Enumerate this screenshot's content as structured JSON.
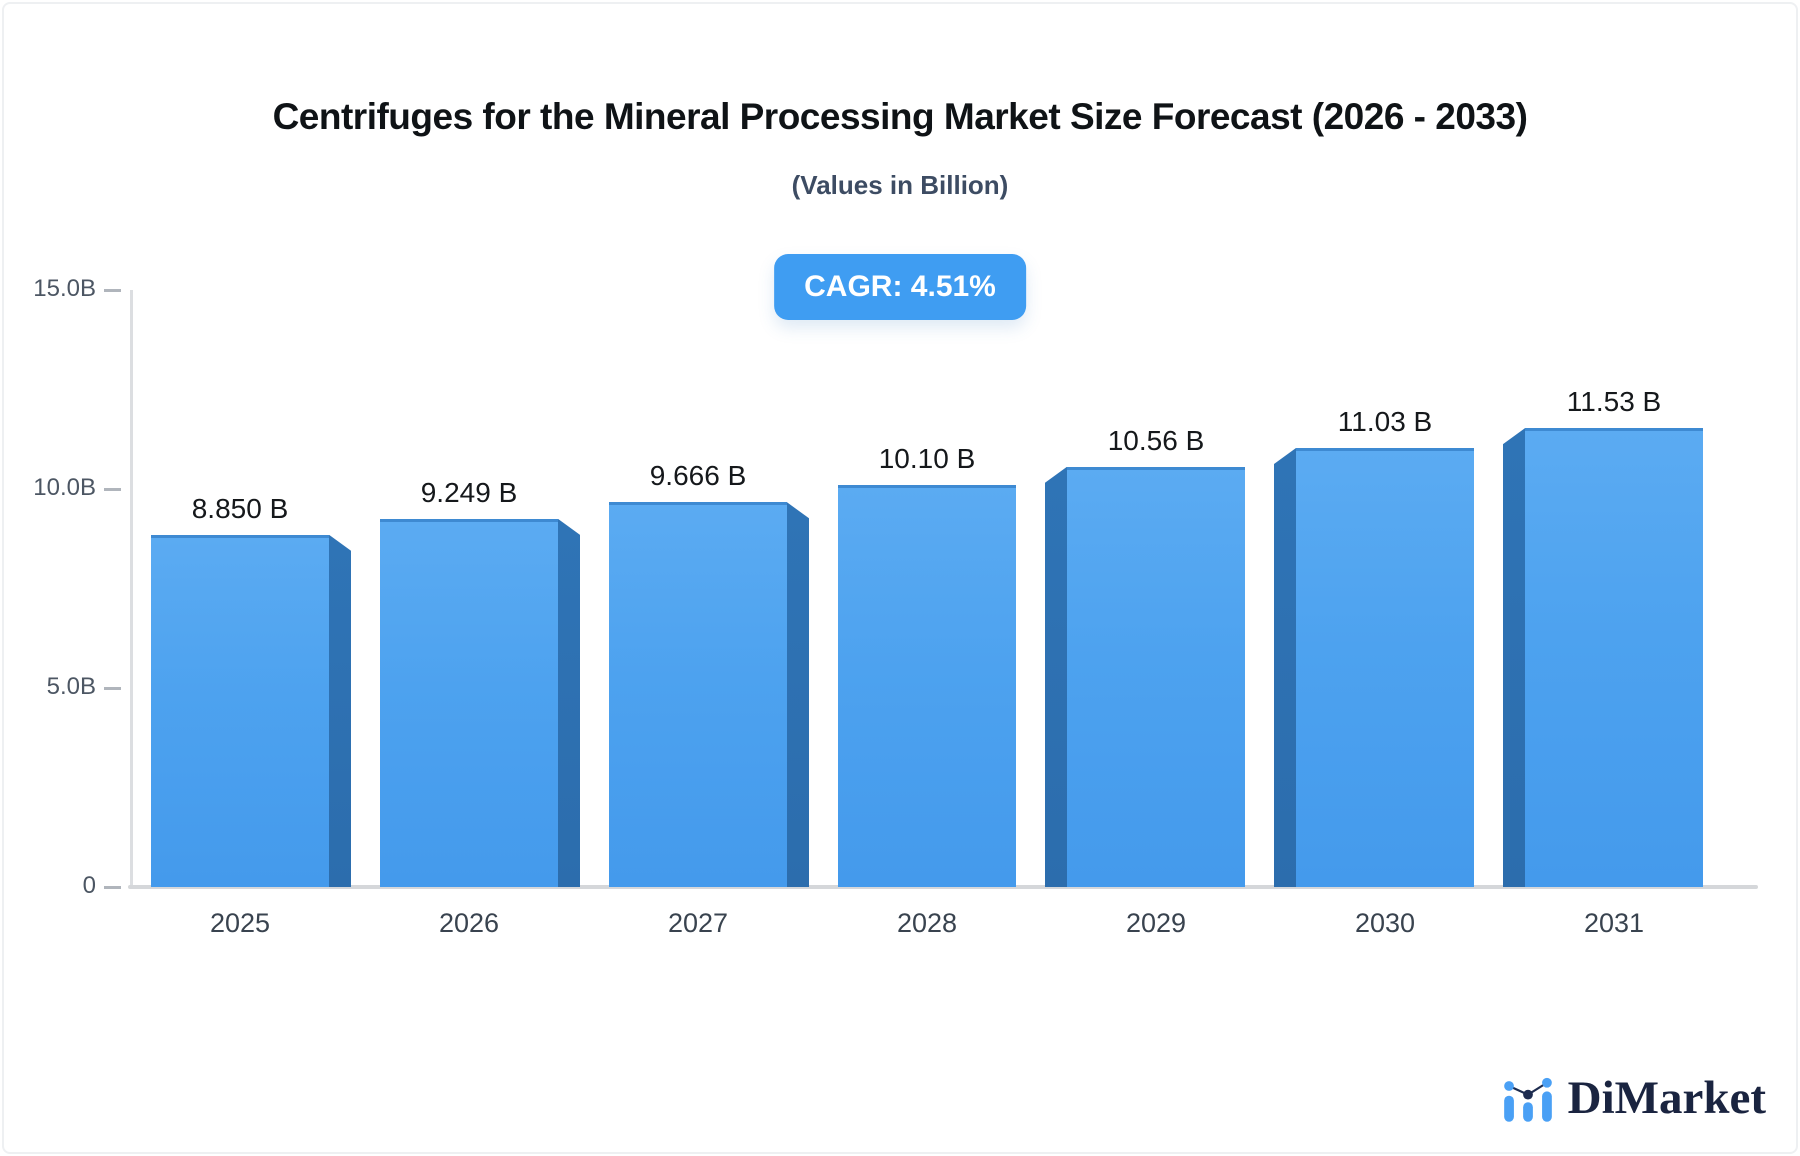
{
  "header": {
    "title": "Centrifuges for the Mineral Processing Market Size Forecast (2026 - 2033)",
    "subtitle": "(Values in Billion)"
  },
  "badge": {
    "label": "CAGR: 4.51%"
  },
  "chart_data": {
    "type": "bar",
    "title": "Centrifuges for the Mineral Processing Market Size Forecast (2026 - 2033)",
    "subtitle": "(Values in Billion)",
    "cagr": "4.51%",
    "categories": [
      "2025",
      "2026",
      "2027",
      "2028",
      "2029",
      "2030",
      "2031"
    ],
    "values": [
      8.85,
      9.249,
      9.666,
      10.1,
      10.56,
      11.03,
      11.53
    ],
    "value_labels": [
      "8.850 B",
      "9.249 B",
      "9.666 B",
      "10.10 B",
      "10.56 B",
      "11.03 B",
      "11.53 B"
    ],
    "xlabel": "",
    "ylabel": "",
    "ylim": [
      0,
      15
    ],
    "y_ticks": [
      {
        "value": 15,
        "label": "15.0B"
      },
      {
        "value": 10,
        "label": "10.0B"
      },
      {
        "value": 5,
        "label": "5.0B"
      },
      {
        "value": 0,
        "label": "0"
      }
    ],
    "grid": false,
    "legend": "none",
    "bar_color_top": "#5babf2",
    "bar_color_bottom": "#449aec",
    "bar_side_color": "#2e73b5",
    "badge_color": "#3f9df2"
  },
  "logo": {
    "text": "DiMarket",
    "icon": "bar-chart-logo-icon",
    "accent_color": "#4aa0f5",
    "text_color": "#1a2440"
  }
}
